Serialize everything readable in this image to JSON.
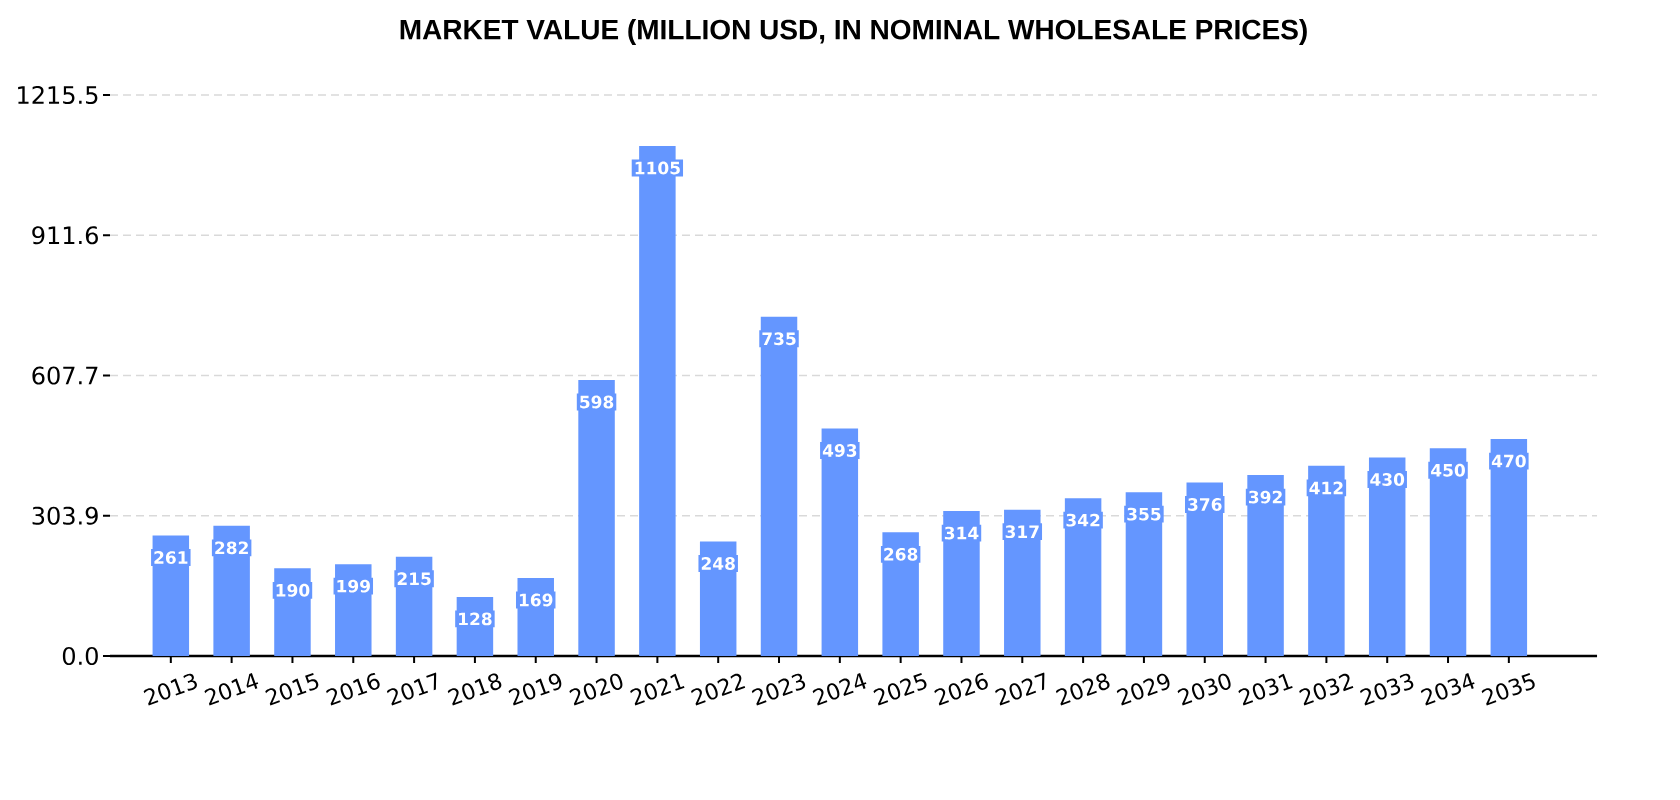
{
  "chart_data": {
    "type": "bar",
    "title": "MARKET VALUE (MILLION USD, IN NOMINAL WHOLESALE PRICES)",
    "categories": [
      "2013",
      "2014",
      "2015",
      "2016",
      "2017",
      "2018",
      "2019",
      "2020",
      "2021",
      "2022",
      "2023",
      "2024",
      "2025",
      "2026",
      "2027",
      "2028",
      "2029",
      "2030",
      "2031",
      "2032",
      "2033",
      "2034",
      "2035"
    ],
    "values": [
      261,
      282,
      190,
      199,
      215,
      128,
      169,
      598,
      1105,
      248,
      735,
      493,
      268,
      314,
      317,
      342,
      355,
      376,
      392,
      412,
      430,
      450,
      470
    ],
    "color": "#6496ff",
    "ylim": [
      0,
      1215.5
    ],
    "yticks": [
      {
        "value": 0,
        "label": "0.0"
      },
      303.9,
      607.7,
      911.6,
      1215.5
    ],
    "grid": "y",
    "data_labels": true
  }
}
